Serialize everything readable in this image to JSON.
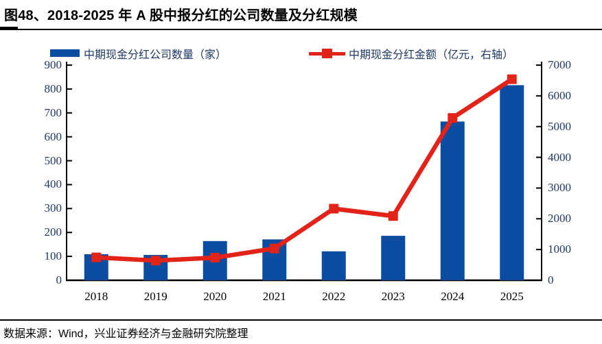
{
  "header": {
    "title": "图48、2018-2025 年 A 股中报分红的公司数量及分红规模"
  },
  "legend": {
    "bar_label": "中期现金分红公司数量（家）",
    "line_label": "中期现金分红金额（亿元，右轴）"
  },
  "footer": {
    "source": "数据来源：Wind，兴业证券经济与金融研究院整理"
  },
  "colors": {
    "bar": "#0C4DA1",
    "line": "#E2231A",
    "axis_text": "#1F3864",
    "frame": "#000000"
  },
  "chart_data": {
    "type": "bar",
    "title": "图48、2018-2025 年 A 股中报分红的公司数量及分红规模",
    "categories": [
      "2018",
      "2019",
      "2020",
      "2021",
      "2022",
      "2023",
      "2024",
      "2025"
    ],
    "series": [
      {
        "name": "中期现金分红公司数量（家）",
        "type": "bar",
        "axis": "left",
        "values": [
          109,
          106,
          164,
          171,
          121,
          186,
          664,
          816
        ]
      },
      {
        "name": "中期现金分红金额（亿元，右轴）",
        "type": "line",
        "axis": "right",
        "values": [
          745,
          640,
          735,
          1035,
          2330,
          2090,
          5280,
          6540
        ]
      }
    ],
    "left_axis": {
      "min": 0,
      "max": 900,
      "step": 100,
      "ticks": [
        "900",
        "800",
        "700",
        "600",
        "500",
        "400",
        "300",
        "200",
        "100",
        "0"
      ]
    },
    "right_axis": {
      "min": 0,
      "max": 7000,
      "step": 1000,
      "ticks": [
        "7000",
        "6000",
        "5000",
        "4000",
        "3000",
        "2000",
        "1000",
        "0"
      ]
    },
    "xlabel": "",
    "ylabel": "",
    "grid": false,
    "legend_position": "top"
  }
}
